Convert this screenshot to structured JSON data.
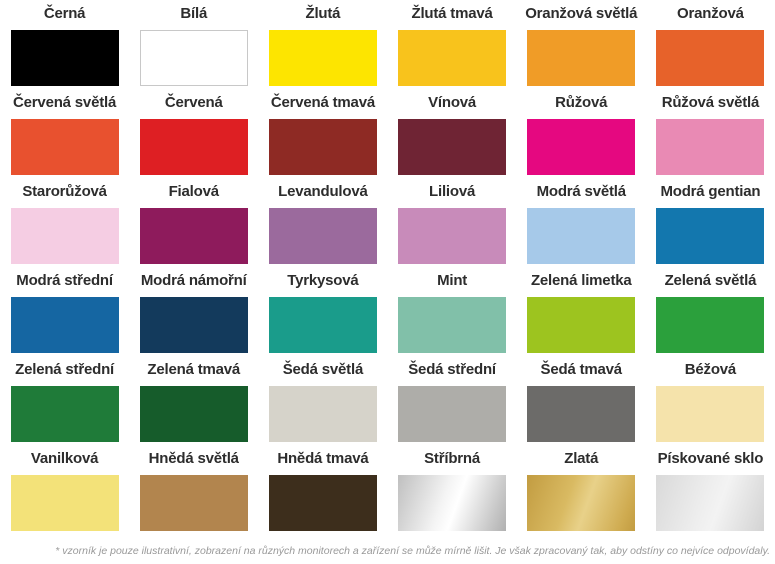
{
  "page": {
    "background": "#ffffff",
    "label_color": "#2d2d2d",
    "footnote_color": "#999999"
  },
  "footer": {
    "text": "* vzorník je pouze ilustrativní, zobrazení na různých monitorech a zařízení se může mírně lišit. Je však zpracovaný tak, aby odstíny co nejvíce odpovídaly."
  },
  "swatches": [
    {
      "label": "Černá",
      "color": "#000000"
    },
    {
      "label": "Bílá",
      "color": "#ffffff",
      "border": "#c8c8c8"
    },
    {
      "label": "Žlutá",
      "color": "#fde500"
    },
    {
      "label": "Žlutá tmavá",
      "color": "#f8c31c"
    },
    {
      "label": "Oranžová světlá",
      "color": "#f09c27"
    },
    {
      "label": "Oranžová",
      "color": "#e7622a"
    },
    {
      "label": "Červená světlá",
      "color": "#e8512f"
    },
    {
      "label": "Červená",
      "color": "#de1f23"
    },
    {
      "label": "Červená tmavá",
      "color": "#8e2a24"
    },
    {
      "label": "Vínová",
      "color": "#6f2434"
    },
    {
      "label": "Růžová",
      "color": "#e50880"
    },
    {
      "label": "Růžová světlá",
      "color": "#e98ab4"
    },
    {
      "label": "Starorůžová",
      "color": "#f5cde3"
    },
    {
      "label": "Fialová",
      "color": "#8e1b5c"
    },
    {
      "label": "Levandulová",
      "color": "#9b6a9d"
    },
    {
      "label": "Liliová",
      "color": "#c88bba"
    },
    {
      "label": "Modrá světlá",
      "color": "#a6c9e9"
    },
    {
      "label": "Modrá gentian",
      "color": "#1377ae"
    },
    {
      "label": "Modrá střední",
      "color": "#1566a2"
    },
    {
      "label": "Modrá námořní",
      "color": "#133a5c"
    },
    {
      "label": "Tyrkysová",
      "color": "#1a9c8b"
    },
    {
      "label": "Mint",
      "color": "#81c0a9"
    },
    {
      "label": "Zelená limetka",
      "color": "#9dc41f"
    },
    {
      "label": "Zelená světlá",
      "color": "#2ba03c"
    },
    {
      "label": "Zelená střední",
      "color": "#1f7b39"
    },
    {
      "label": "Zelená tmavá",
      "color": "#165c2b"
    },
    {
      "label": "Šedá světlá",
      "color": "#d6d3ca"
    },
    {
      "label": "Šedá střední",
      "color": "#aeada9"
    },
    {
      "label": "Šedá tmavá",
      "color": "#6c6b69"
    },
    {
      "label": "Béžová",
      "color": "#f5e3ab"
    },
    {
      "label": "Vanilková",
      "color": "#f3e279"
    },
    {
      "label": "Hnědá světlá",
      "color": "#b2854e"
    },
    {
      "label": "Hnědá tmavá",
      "color": "#3d2e1c"
    },
    {
      "label": "Stříbrná",
      "gradient": {
        "angle": 110,
        "stops": [
          "#bfbfbf 0%",
          "#f4f4f4 42%",
          "#ffffff 54%",
          "#c9c9c9 85%",
          "#b0b0b0 100%"
        ]
      }
    },
    {
      "label": "Zlatá",
      "gradient": {
        "angle": 110,
        "stops": [
          "#c29c41 0%",
          "#d9ba62 38%",
          "#e8d189 55%",
          "#cfab50 88%",
          "#c29c41 100%"
        ]
      }
    },
    {
      "label": "Pískované sklo",
      "gradient": {
        "angle": 110,
        "stops": [
          "#d9d9d9 0%",
          "#eeeeee 45%",
          "#f3f3f3 58%",
          "#d3d3d3 100%"
        ]
      }
    }
  ]
}
